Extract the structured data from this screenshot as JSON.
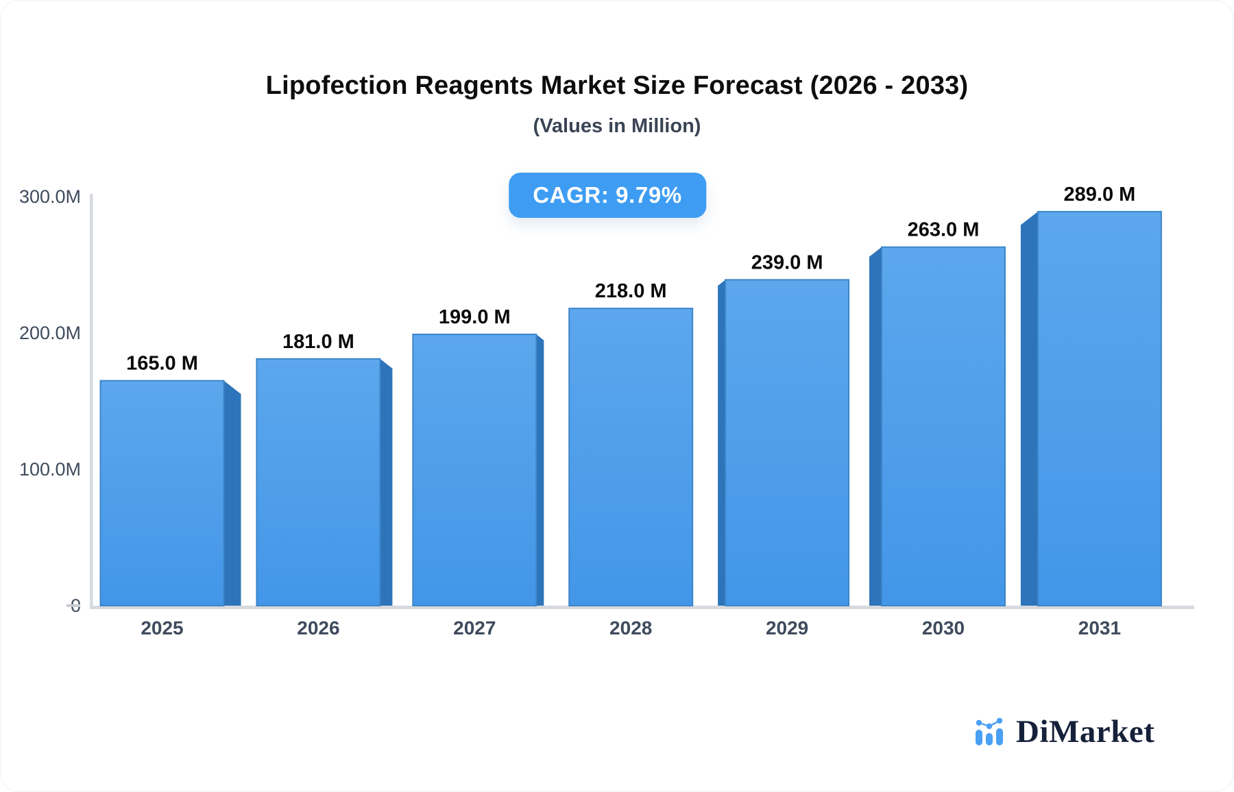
{
  "title": "Lipofection Reagents Market Size Forecast (2026 - 2033)",
  "subtitle": "(Values in Million)",
  "badge": {
    "label": "CAGR: 9.79%",
    "color": "#3e9df3"
  },
  "logo": {
    "name": "DiMarket",
    "icon": "mini-bar-chart-icon",
    "icon_color": "#4aa0f4",
    "text_color": "#15213a"
  },
  "chart_data": {
    "type": "bar",
    "categories": [
      "2025",
      "2026",
      "2027",
      "2028",
      "2029",
      "2030",
      "2031"
    ],
    "values": [
      165,
      181,
      199,
      218,
      239,
      263,
      289
    ],
    "value_labels": [
      "165.0 M",
      "181.0 M",
      "199.0 M",
      "218.0 M",
      "239.0 M",
      "263.0 M",
      "289.0 M"
    ],
    "title": "Lipofection Reagents Market Size Forecast (2026 - 2033)",
    "subtitle": "(Values in Million)",
    "xlabel": "",
    "ylabel": "",
    "ylim": [
      0,
      300
    ],
    "y_ticks": [
      {
        "label": "0",
        "value": 0
      },
      {
        "label": "100.0M",
        "value": 100
      },
      {
        "label": "200.0M",
        "value": 200
      },
      {
        "label": "300.0M",
        "value": 300
      }
    ],
    "grid": false,
    "legend": false,
    "colors": {
      "bar_face_top": "#5ca7ed",
      "bar_face_bottom": "#4396e8",
      "bar_face_stroke": "#3d85c8",
      "bar_side": "#2e74ba",
      "axis": "#d6d9dd",
      "tick": "#c9cdd2",
      "axis_label": "#3e4b5c",
      "value_label": "#0a0a0a"
    }
  }
}
